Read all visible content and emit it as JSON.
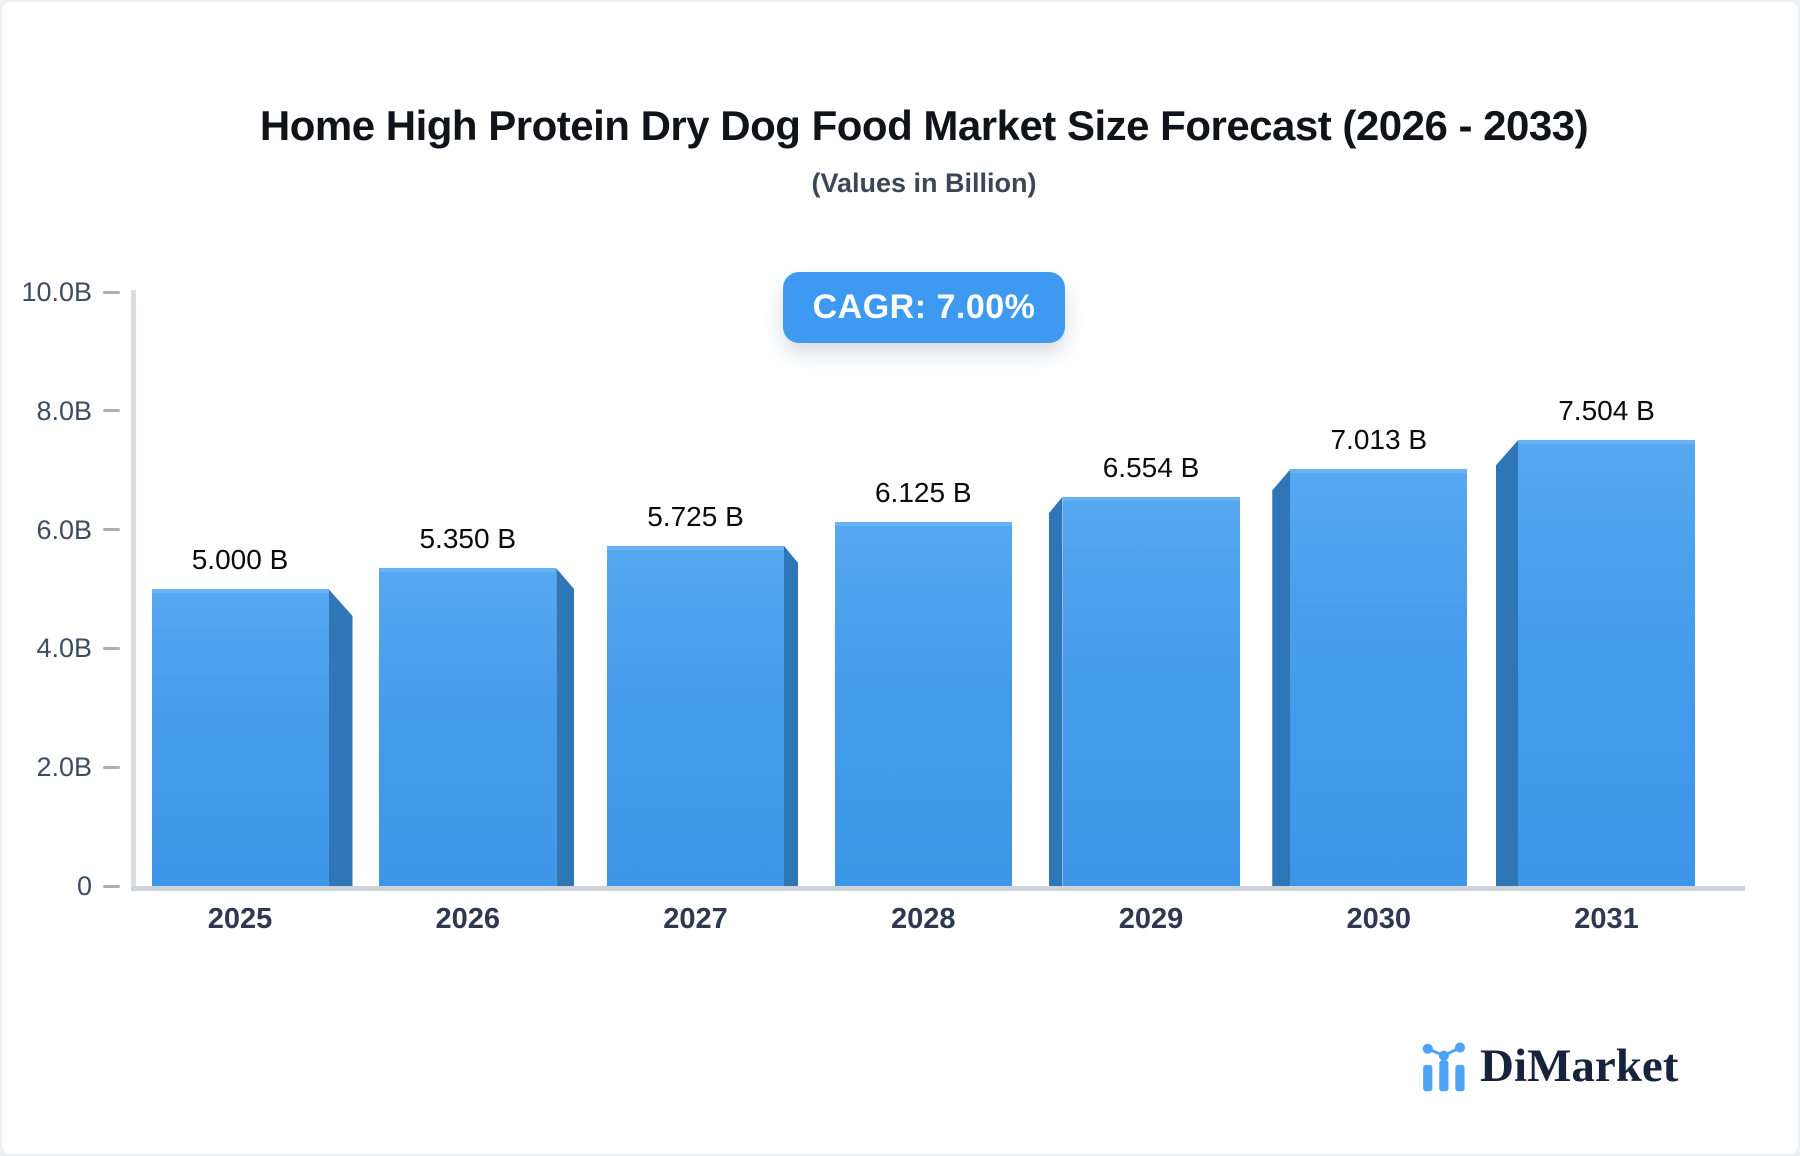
{
  "title": "Home High Protein Dry Dog Food Market Size Forecast (2026 - 2033)",
  "subtitle": "(Values in Billion)",
  "badge": {
    "label": "CAGR: 7.00%",
    "color": "#3e9af0"
  },
  "brand": {
    "name": "DiMarket",
    "icon": "mini-bar-chart-icon",
    "icon_color": "#4da3f5",
    "text_color": "#17233c"
  },
  "chart_data": {
    "type": "bar",
    "title": "Home High Protein Dry Dog Food Market Size Forecast (2026 - 2033)",
    "subtitle": "(Values in Billion)",
    "categories": [
      "2025",
      "2026",
      "2027",
      "2028",
      "2029",
      "2030",
      "2031"
    ],
    "values": [
      5.0,
      5.35,
      5.725,
      6.125,
      6.554,
      7.013,
      7.504
    ],
    "value_labels": [
      "5.000 B",
      "5.350 B",
      "5.725 B",
      "6.125 B",
      "6.554 B",
      "7.013 B",
      "7.504 B"
    ],
    "xlabel": "",
    "ylabel": "",
    "ylim": [
      0,
      10
    ],
    "yticks": [
      {
        "label": "0",
        "value": 0
      },
      {
        "label": "2.0B",
        "value": 2
      },
      {
        "label": "4.0B",
        "value": 4
      },
      {
        "label": "6.0B",
        "value": 6
      },
      {
        "label": "8.0B",
        "value": 8
      },
      {
        "label": "10.0B",
        "value": 10
      }
    ],
    "grid": false,
    "legend": false,
    "bar_color": "#459ceb",
    "bar_side_color": "#2e76b5",
    "style": "3d-perspective-bars"
  }
}
